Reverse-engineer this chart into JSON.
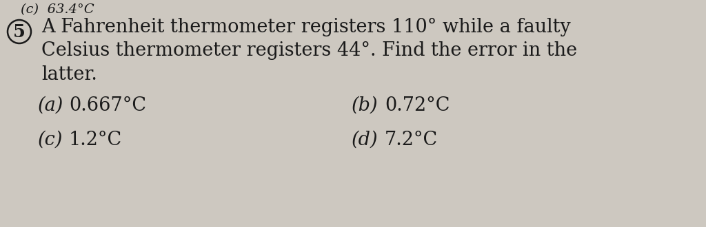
{
  "bg_color": "#cdc8c0",
  "text_color": "#1a1a1a",
  "question_number": "5",
  "question_line1": "A Fahrenheit thermometer registers 110° while a faulty",
  "question_line2": "Celsius thermometer registers 44°. Find the error in the",
  "question_line3": "latter.",
  "option_a_label": "(a)",
  "option_a_value": "0.667°C",
  "option_b_label": "(b)",
  "option_b_value": "0.72°C",
  "option_c_label": "(c)",
  "option_c_value": "1.2°C",
  "option_d_label": "(d)",
  "option_d_value": "7.2°C",
  "top_partial_text": "(c)  63.4°C",
  "font_size_question": 19.5,
  "font_size_options": 19.5,
  "font_size_partial": 14
}
